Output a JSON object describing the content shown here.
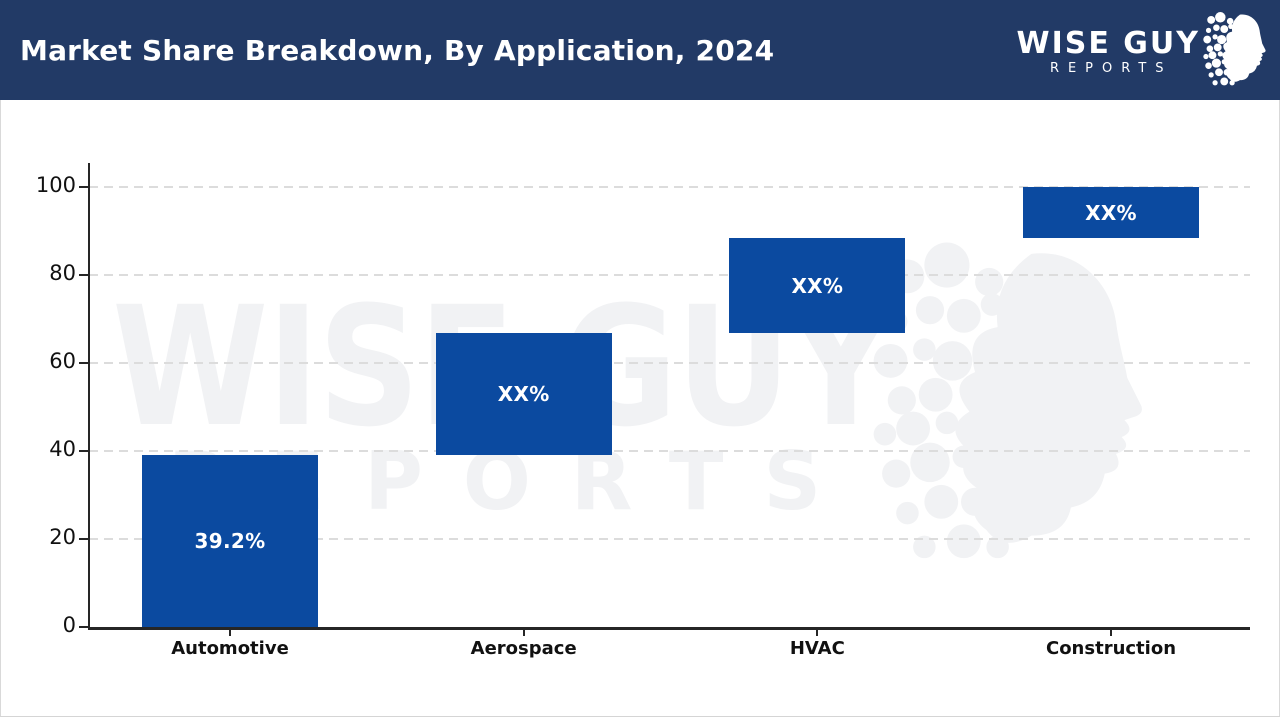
{
  "header": {
    "title": "Market Share Breakdown, By Application, 2024",
    "bg_color": "#223A66",
    "logo": {
      "line1": "WISE GUY",
      "line2": "REPORTS"
    }
  },
  "watermark": {
    "line1": "WISE GUY",
    "line2": "REPORTS"
  },
  "chart_data": {
    "type": "bar",
    "subtype": "waterfall-floating-bars",
    "title": "Market Share Breakdown, By Application, 2024",
    "categories": [
      "Automotive",
      "Aerospace",
      "HVAC",
      "Construction"
    ],
    "segments": [
      {
        "category": "Automotive",
        "start": 0,
        "end": 39.2,
        "label": "39.2%"
      },
      {
        "category": "Aerospace",
        "start": 39.2,
        "end": 66.8,
        "label": "XX%"
      },
      {
        "category": "HVAC",
        "start": 66.8,
        "end": 88.4,
        "label": "XX%"
      },
      {
        "category": "Construction",
        "start": 88.4,
        "end": 100,
        "label": "XX%"
      }
    ],
    "xlabel": "",
    "ylabel": "",
    "yticks": [
      0,
      20,
      40,
      60,
      80,
      100
    ],
    "ylim": [
      0,
      100
    ],
    "grid": "horizontal-dashed",
    "legend": "none",
    "colors": {
      "bar": "#0B4AA0",
      "bar_label": "#ffffff",
      "axis": "#262626",
      "tick_label": "#111111",
      "gridline": "#dcdcdc",
      "header_bg": "#223A66",
      "watermark": "#f1f2f4"
    }
  }
}
